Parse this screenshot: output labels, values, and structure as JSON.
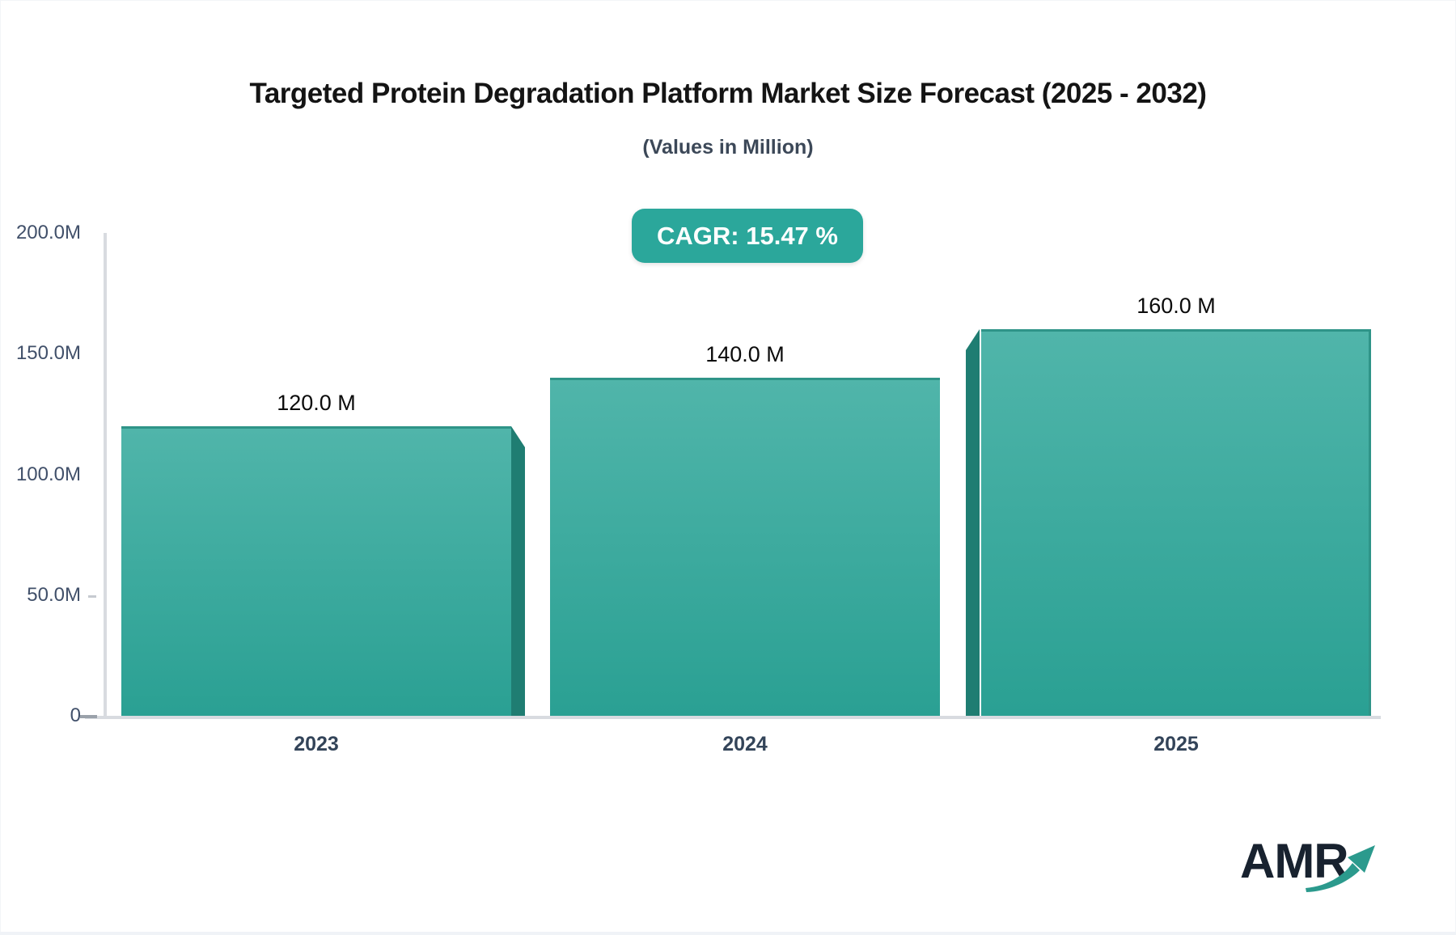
{
  "title": "Targeted Protein Degradation Platform Market Size Forecast (2025 - 2032)",
  "subtitle": "(Values in Million)",
  "cagr_badge": "CAGR: 15.47 %",
  "logo": {
    "text": "AMR",
    "arrow_icon": "trend-up-arrow"
  },
  "colors": {
    "bar_gradient_top": "#50b5aa",
    "bar_gradient_bottom": "#2aa093",
    "bar_side_3d": "#1f7d72",
    "bar_edge": "#2f9488",
    "badge_background": "#2ba79b",
    "badge_text": "#ffffff",
    "axis_line": "#d8dbe0",
    "tick_label": "#41506a",
    "value_label": "#0b0b0b"
  },
  "chart_data": {
    "type": "bar",
    "title": "Targeted Protein Degradation Platform Market Size Forecast (2025 - 2032)",
    "subtitle": "(Values in Million)",
    "annotation": "CAGR: 15.47 %",
    "categories": [
      "2023",
      "2024",
      "2025"
    ],
    "values": [
      120,
      140,
      160
    ],
    "bar_labels": [
      "120.0 M",
      "140.0 M",
      "160.0 M"
    ],
    "unit": "Million USD",
    "xlabel": "",
    "ylabel": "",
    "ylim": [
      0,
      200
    ],
    "y_ticks": [
      {
        "value": 0,
        "label": "0"
      },
      {
        "value": 50,
        "label": "50.0M"
      },
      {
        "value": 100,
        "label": "100.0M"
      },
      {
        "value": 150,
        "label": "150.0M"
      },
      {
        "value": 200,
        "label": "200.0M"
      }
    ],
    "grid": false,
    "legend": false,
    "bar_style": "3d-beveled"
  }
}
